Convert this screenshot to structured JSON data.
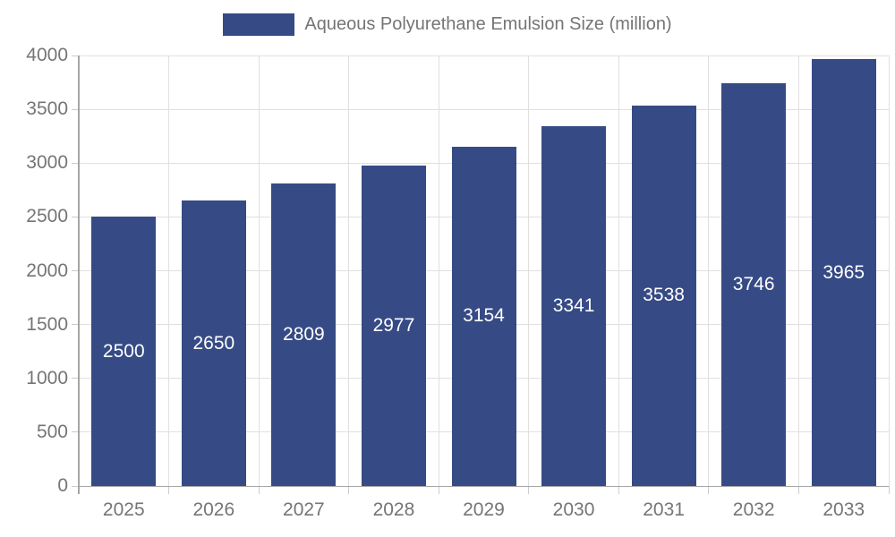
{
  "chart_data": {
    "type": "bar",
    "title": "Aqueous Polyurethane Emulsion Size (million)",
    "legend": [
      "Aqueous Polyurethane Emulsion Size (million)"
    ],
    "legend_position": "top-center",
    "categories": [
      "2025",
      "2026",
      "2027",
      "2028",
      "2029",
      "2030",
      "2031",
      "2032",
      "2033"
    ],
    "values": [
      2500,
      2650,
      2809,
      2977,
      3154,
      3341,
      3538,
      3746,
      3965
    ],
    "bar_labels_shown": true,
    "xlabel": "",
    "ylabel": "",
    "ylim": [
      0,
      4000
    ],
    "yticks": [
      0,
      500,
      1000,
      1500,
      2000,
      2500,
      3000,
      3500,
      4000
    ],
    "grid": true,
    "colors": {
      "bar": "#364a85",
      "bar_label": "#ffffff",
      "grid_line": "#e0e0e0",
      "axis_line": "#a6a6a6",
      "tick_line": "#cccccc",
      "tick_text": "#757575",
      "legend_text": "#757575",
      "background": "#ffffff"
    }
  }
}
